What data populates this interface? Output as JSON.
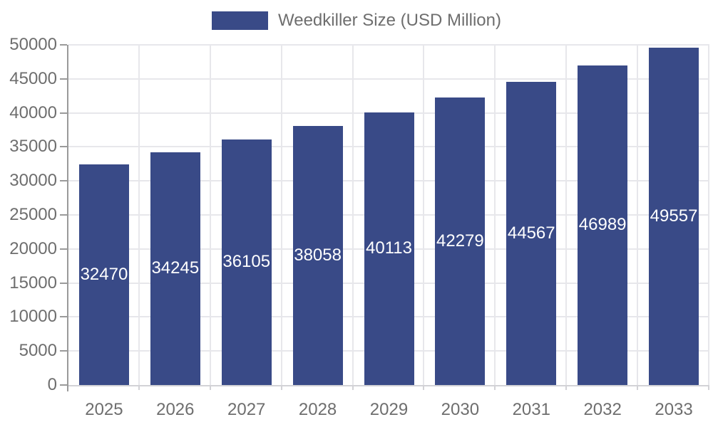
{
  "legend": {
    "label": "Weedkiller Size (USD Million)"
  },
  "chart_data": {
    "type": "bar",
    "title": "Weedkiller Size (USD Million)",
    "series_name": "Weedkiller Size (USD Million)",
    "categories": [
      "2025",
      "2026",
      "2027",
      "2028",
      "2029",
      "2030",
      "2031",
      "2032",
      "2033"
    ],
    "values": [
      32470,
      34245,
      36105,
      38058,
      40113,
      42279,
      44567,
      46989,
      49557
    ],
    "xlabel": "",
    "ylabel": "",
    "ylim": [
      0,
      50000
    ],
    "ytick_step": 5000,
    "ytick_labels": [
      "0",
      "5000",
      "10000",
      "15000",
      "20000",
      "25000",
      "30000",
      "35000",
      "40000",
      "45000",
      "50000"
    ],
    "grid": true,
    "legend_position": "top-center",
    "colors": {
      "bar": "#394A87",
      "value_label": "#FFFFFF",
      "tick_text": "#6E6E6E",
      "legend_text": "#6E6E6E",
      "y_axis_line": "#9A9A9A",
      "x_axis_line": "#D2D2D6",
      "gridline": "#E7E7EB"
    }
  }
}
